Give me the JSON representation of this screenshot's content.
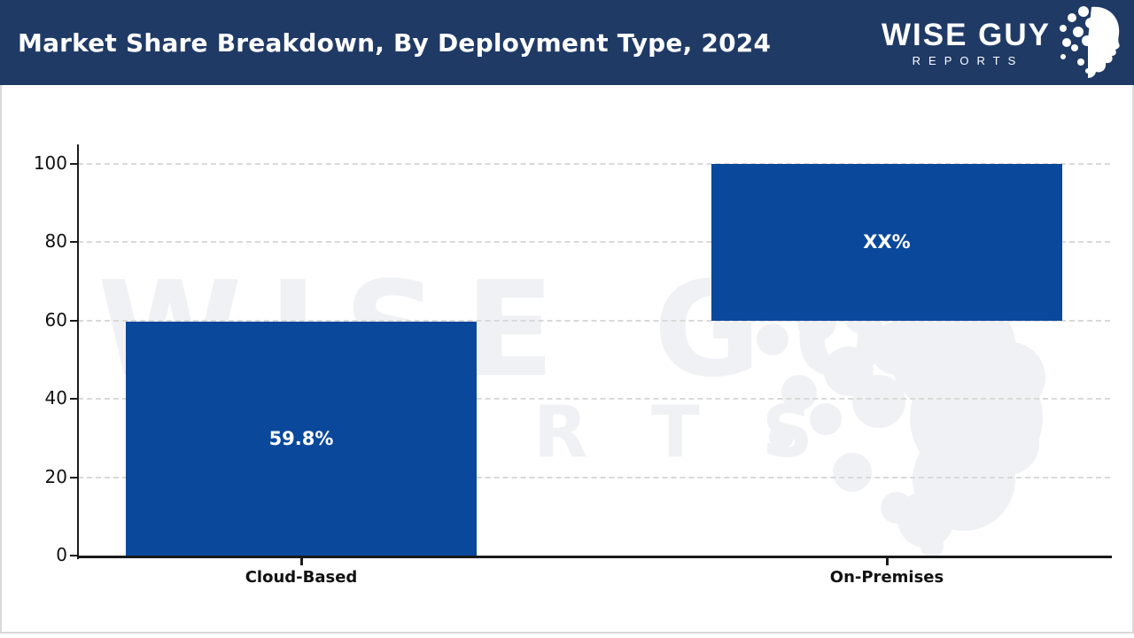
{
  "header": {
    "title": "Market Share Breakdown, By Deployment Type, 2024",
    "logo": {
      "name_line": "WISE GUY",
      "sub_line": "REPORTS"
    }
  },
  "watermark": {
    "big_text": "WISE GUY",
    "letters": [
      "R",
      "T",
      "S"
    ]
  },
  "colors": {
    "header_bg": "#203a66",
    "bar": "#0a489b",
    "grid": "#d9d9d9",
    "axis": "#1a1a1a",
    "bar_label": "#ffffff",
    "watermark": "#f0f1f4"
  },
  "chart_data": {
    "type": "bar",
    "title": "Market Share Breakdown, By Deployment Type, 2024",
    "xlabel": "",
    "ylabel": "",
    "categories": [
      "Cloud-Based",
      "On-Premises"
    ],
    "bars": [
      {
        "category": "Cloud-Based",
        "range": [
          0,
          59.8
        ],
        "label": "59.8%"
      },
      {
        "category": "On-Premises",
        "range": [
          60,
          100
        ],
        "label": "XX%"
      }
    ],
    "ylim": [
      0,
      100
    ],
    "yticks": [
      0,
      20,
      40,
      60,
      80,
      100
    ],
    "grid": "horizontal-dashed",
    "legend": "none"
  }
}
